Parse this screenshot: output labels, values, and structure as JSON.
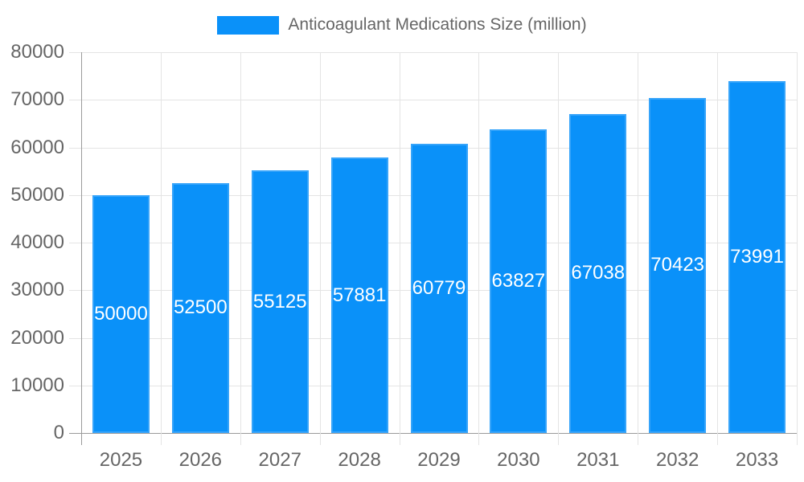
{
  "legend": {
    "label": "Anticoagulant Medications Size (million)",
    "swatch_color": "#0a91f9"
  },
  "chart_data": {
    "type": "bar",
    "title": "Anticoagulant Medications Size (million)",
    "categories": [
      "2025",
      "2026",
      "2027",
      "2028",
      "2029",
      "2030",
      "2031",
      "2032",
      "2033"
    ],
    "series": [
      {
        "name": "Anticoagulant Medications Size (million)",
        "values": [
          50000,
          52500,
          55125,
          57881,
          60779,
          63827,
          67038,
          70423,
          73991
        ],
        "color": "#0a91f9"
      }
    ],
    "bar_labels": [
      "50000",
      "52500",
      "55125",
      "57881",
      "60779",
      "63827",
      "67038",
      "70423",
      "73991"
    ],
    "xlabel": "",
    "ylabel": "",
    "ylim": [
      0,
      80000
    ],
    "yticks": [
      "0",
      "10000",
      "20000",
      "30000",
      "40000",
      "50000",
      "60000",
      "70000",
      "80000"
    ],
    "grid": true,
    "legend_position": "top",
    "colors": {
      "bar_fill": "#0a91f9",
      "bar_value_label": "#ffffff",
      "axis_tick_label": "#666666",
      "gridline": "#e4e4e4",
      "axis_line": "#9b9b9b",
      "background": "#ffffff"
    }
  }
}
